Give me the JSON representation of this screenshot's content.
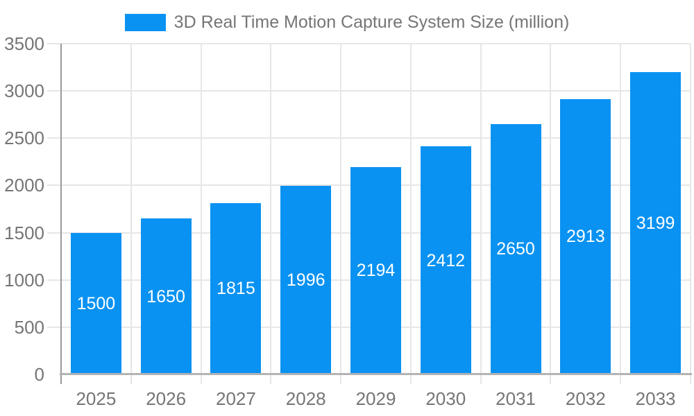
{
  "chart_data": {
    "type": "bar",
    "title": "3D Real Time Motion Capture System Size (million)",
    "legend": {
      "position": "top",
      "label": "3D Real Time Motion Capture System Size (million)"
    },
    "categories": [
      "2025",
      "2026",
      "2027",
      "2028",
      "2029",
      "2030",
      "2031",
      "2032",
      "2033"
    ],
    "values": [
      1500,
      1650,
      1815,
      1996,
      2194,
      2412,
      2650,
      2913,
      3199
    ],
    "xlabel": "",
    "ylabel": "",
    "ylim": [
      0,
      3500
    ],
    "yticks": [
      0,
      500,
      1000,
      1500,
      2000,
      2500,
      3000,
      3500
    ],
    "grid": true,
    "colors": {
      "bar": "#0992f2",
      "grid": "#e6e6e6",
      "y_axis": "#999999",
      "x_axis": "#b3b3b3",
      "tick_text": "#757575",
      "bar_label_text": "#ffffff",
      "background": "#ffffff"
    }
  }
}
